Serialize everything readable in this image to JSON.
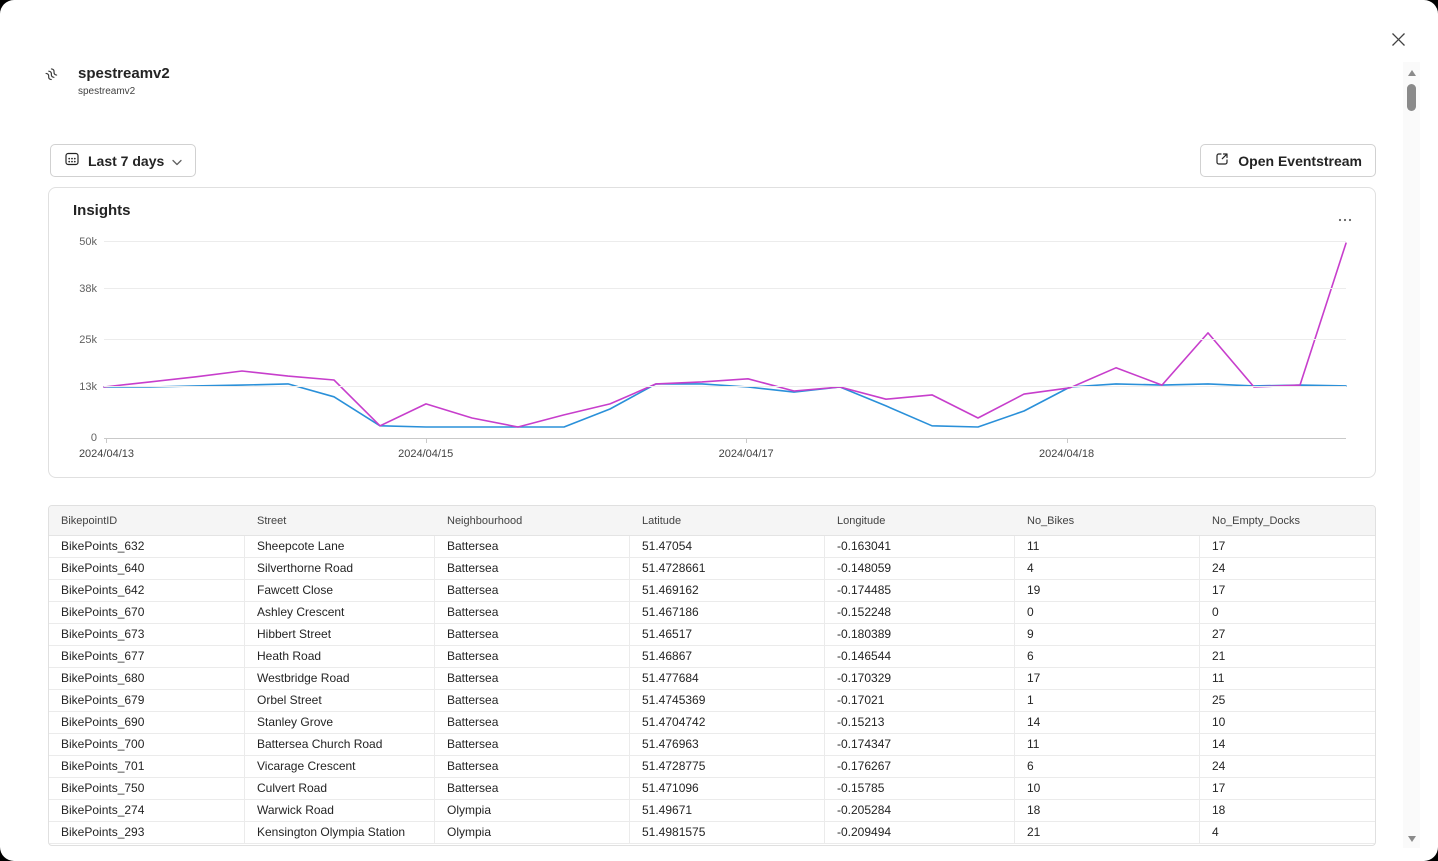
{
  "window": {
    "icons": {
      "close": "close-icon",
      "scroll_up": "scroll-up-arrow-icon",
      "scroll_down": "scroll-down-arrow-icon"
    }
  },
  "header": {
    "icon": "eventstream-icon",
    "title": "spestreamv2",
    "subtitle": "spestreamv2"
  },
  "toolbar": {
    "time_range_icon": "calendar-icon",
    "time_range_label": "Last 7 days",
    "time_range_chevron": "chevron-down-icon",
    "open_eventstream_icon": "open-external-icon",
    "open_eventstream_label": "Open Eventstream"
  },
  "insights": {
    "title": "Insights",
    "more_icon": "more-ellipsis-icon"
  },
  "colors": {
    "series_blue": "#2a90d9",
    "series_magenta": "#c73ecc",
    "grid": "#ececec",
    "baseline": "#c9c9c9"
  },
  "chart_data": {
    "type": "line",
    "title": "Insights",
    "xlabel": "",
    "ylabel": "",
    "ylim": [
      0,
      50000
    ],
    "grid": true,
    "legend": "none",
    "y_ticks": [
      {
        "label": "0",
        "value": 0
      },
      {
        "label": "13k",
        "value": 13000
      },
      {
        "label": "25k",
        "value": 25000
      },
      {
        "label": "38k",
        "value": 38000
      },
      {
        "label": "50k",
        "value": 50000
      }
    ],
    "x_ticks": [
      {
        "label": "2024/04/13",
        "pos": 0.002
      },
      {
        "label": "2024/04/15",
        "pos": 0.259
      },
      {
        "label": "2024/04/17",
        "pos": 0.517
      },
      {
        "label": "2024/04/18",
        "pos": 0.775
      }
    ],
    "series": [
      {
        "name": "blue",
        "color": "#2a90d9",
        "values": [
          13000,
          13000,
          13300,
          13500,
          13800,
          10500,
          3100,
          2800,
          2800,
          2800,
          2800,
          7400,
          13800,
          13800,
          13000,
          11700,
          13000,
          8200,
          3100,
          2800,
          6900,
          13000,
          13800,
          13500,
          13800,
          13300,
          13500,
          13300
        ]
      },
      {
        "name": "magenta",
        "color": "#c73ecc",
        "values": [
          13000,
          14300,
          15600,
          17100,
          15800,
          14800,
          3100,
          8700,
          5100,
          2800,
          5900,
          8700,
          13800,
          14300,
          15100,
          12000,
          13000,
          9900,
          11000,
          5100,
          11200,
          12800,
          17900,
          13500,
          26800,
          13000,
          13500,
          49700
        ]
      }
    ]
  },
  "table": {
    "columns": [
      "BikepointID",
      "Street",
      "Neighbourhood",
      "Latitude",
      "Longitude",
      "No_Bikes",
      "No_Empty_Docks"
    ],
    "rows": [
      [
        "BikePoints_632",
        "Sheepcote Lane",
        "Battersea",
        "51.47054",
        "-0.163041",
        "11",
        "17"
      ],
      [
        "BikePoints_640",
        "Silverthorne Road",
        "Battersea",
        "51.4728661",
        "-0.148059",
        "4",
        "24"
      ],
      [
        "BikePoints_642",
        "Fawcett Close",
        "Battersea",
        "51.469162",
        "-0.174485",
        "19",
        "17"
      ],
      [
        "BikePoints_670",
        "Ashley Crescent",
        "Battersea",
        "51.467186",
        "-0.152248",
        "0",
        "0"
      ],
      [
        "BikePoints_673",
        "Hibbert Street",
        "Battersea",
        "51.46517",
        "-0.180389",
        "9",
        "27"
      ],
      [
        "BikePoints_677",
        "Heath Road",
        "Battersea",
        "51.46867",
        "-0.146544",
        "6",
        "21"
      ],
      [
        "BikePoints_680",
        "Westbridge Road",
        "Battersea",
        "51.477684",
        "-0.170329",
        "17",
        "11"
      ],
      [
        "BikePoints_679",
        "Orbel Street",
        "Battersea",
        "51.4745369",
        "-0.17021",
        "1",
        "25"
      ],
      [
        "BikePoints_690",
        "Stanley Grove",
        "Battersea",
        "51.4704742",
        "-0.15213",
        "14",
        "10"
      ],
      [
        "BikePoints_700",
        "Battersea Church Road",
        "Battersea",
        "51.476963",
        "-0.174347",
        "11",
        "14"
      ],
      [
        "BikePoints_701",
        "Vicarage Crescent",
        "Battersea",
        "51.4728775",
        "-0.176267",
        "6",
        "24"
      ],
      [
        "BikePoints_750",
        "Culvert Road",
        "Battersea",
        "51.471096",
        "-0.15785",
        "10",
        "17"
      ],
      [
        "BikePoints_274",
        "Warwick Road",
        "Olympia",
        "51.49671",
        "-0.205284",
        "18",
        "18"
      ],
      [
        "BikePoints_293",
        "Kensington Olympia Station",
        "Olympia",
        "51.4981575",
        "-0.209494",
        "21",
        "4"
      ]
    ]
  }
}
